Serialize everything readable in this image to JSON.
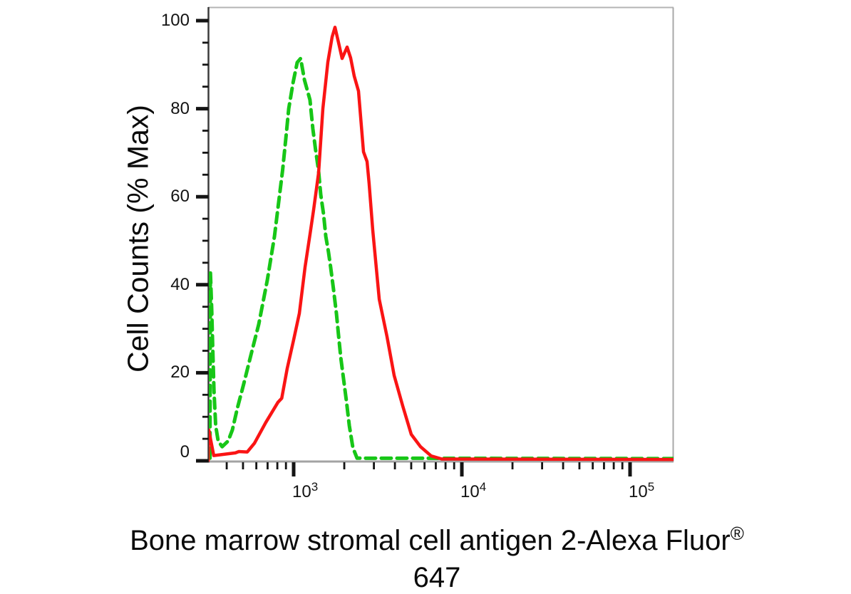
{
  "figure": {
    "background": "#ffffff"
  },
  "title": {
    "line1": "Bone marrow stromal cell antigen 2-Alexa Fluor",
    "registered_mark": "®",
    "line2": "647"
  },
  "y_axis": {
    "label": "Cell Counts (% Max)",
    "tick_labels": [
      "0",
      "20",
      "40",
      "60",
      "80",
      "100"
    ],
    "tick_values": [
      0,
      20,
      40,
      60,
      80,
      100
    ],
    "minor_tick_step": 5
  },
  "x_axis": {
    "scale": "log10",
    "tick_base": "10",
    "major_tick_exponents": [
      3,
      4,
      5
    ],
    "minor_tick_multiples": [
      2,
      3,
      4,
      5,
      6,
      7,
      8,
      9
    ]
  },
  "style": {
    "tick_color": "#141414",
    "left_spine_color": "#3c3c3c",
    "bottom_spine_color": "#a3a3a3",
    "top_spine_color": "#b4b4b4",
    "right_spine_color": "#a8a8a8"
  },
  "chart_data": {
    "type": "line",
    "subtype": "flow-cytometry-overlay-histogram",
    "xlabel": "Bone marrow stromal cell antigen 2-Alexa Fluor® 647",
    "ylabel": "Cell Counts (% Max)",
    "x_scale": "log10",
    "xlim": [
      310,
      181000
    ],
    "ylim": [
      0,
      100
    ],
    "grid": false,
    "legend": false,
    "series": [
      {
        "name": "green-dashed",
        "color": "#17c617",
        "line_style": "dashed",
        "line_width": 5,
        "peak": {
          "x": 1100,
          "y": 91.4
        },
        "points": [
          [
            318,
            0.6
          ],
          [
            320,
            43
          ],
          [
            326,
            34
          ],
          [
            330,
            26
          ],
          [
            336,
            16
          ],
          [
            344,
            8
          ],
          [
            356,
            4.5
          ],
          [
            376,
            3.2
          ],
          [
            408,
            4.5
          ],
          [
            432,
            7
          ],
          [
            463,
            12
          ],
          [
            505,
            17.5
          ],
          [
            557,
            24
          ],
          [
            620,
            31
          ],
          [
            697,
            41
          ],
          [
            769,
            51
          ],
          [
            810,
            58
          ],
          [
            860,
            66
          ],
          [
            900,
            73.5
          ],
          [
            935,
            80
          ],
          [
            993,
            86
          ],
          [
            1050,
            90.5
          ],
          [
            1100,
            91.4
          ],
          [
            1160,
            86.5
          ],
          [
            1250,
            82
          ],
          [
            1300,
            75.5
          ],
          [
            1352,
            70.5
          ],
          [
            1406,
            66
          ],
          [
            1449,
            60.5
          ],
          [
            1507,
            56
          ],
          [
            1552,
            51
          ],
          [
            1610,
            47.5
          ],
          [
            1660,
            44
          ],
          [
            1726,
            39
          ],
          [
            1795,
            33.5
          ],
          [
            1849,
            28.5
          ],
          [
            1905,
            23.5
          ],
          [
            1982,
            18.5
          ],
          [
            2061,
            13.5
          ],
          [
            2143,
            8
          ],
          [
            2249,
            3
          ],
          [
            2382,
            0.6
          ],
          [
            180000,
            0.5
          ]
        ]
      },
      {
        "name": "red-solid",
        "color": "#fa1414",
        "line_style": "solid",
        "line_width": 4.5,
        "peak": {
          "x": 1761,
          "y": 98.5
        },
        "points": [
          [
            310,
            0
          ],
          [
            313,
            7
          ],
          [
            335,
            1.2
          ],
          [
            450,
            1.8
          ],
          [
            472,
            2.1
          ],
          [
            530,
            2
          ],
          [
            585,
            4
          ],
          [
            683,
            8.7
          ],
          [
            807,
            13.3
          ],
          [
            850,
            14.2
          ],
          [
            916,
            21
          ],
          [
            1000,
            27.5
          ],
          [
            1081,
            33.5
          ],
          [
            1169,
            44
          ],
          [
            1252,
            51.5
          ],
          [
            1314,
            57
          ],
          [
            1407,
            65.4
          ],
          [
            1492,
            80
          ],
          [
            1598,
            90.6
          ],
          [
            1694,
            96.3
          ],
          [
            1761,
            98.5
          ],
          [
            1849,
            95
          ],
          [
            1941,
            91.4
          ],
          [
            2079,
            94
          ],
          [
            2182,
            91.5
          ],
          [
            2291,
            87.4
          ],
          [
            2430,
            84
          ],
          [
            2602,
            70.2
          ],
          [
            2732,
            68
          ],
          [
            2810,
            63
          ],
          [
            2953,
            52.4
          ],
          [
            3227,
            36.7
          ],
          [
            3591,
            28.2
          ],
          [
            3958,
            19.4
          ],
          [
            4450,
            12.5
          ],
          [
            5003,
            6
          ],
          [
            5678,
            3.2
          ],
          [
            6573,
            1.1
          ],
          [
            7613,
            0.4
          ],
          [
            180000,
            0.3
          ]
        ]
      }
    ]
  }
}
